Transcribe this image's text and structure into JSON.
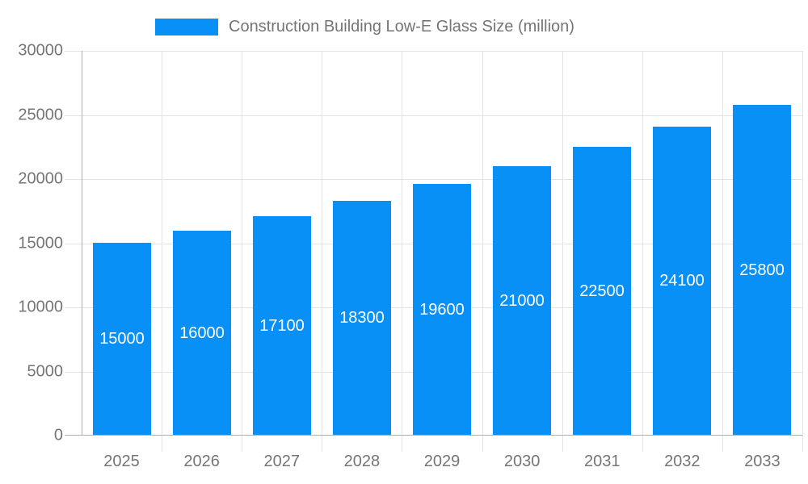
{
  "chart_data": {
    "type": "bar",
    "title": "Construction Building Low-E Glass Size (million)",
    "categories": [
      "2025",
      "2026",
      "2027",
      "2028",
      "2029",
      "2030",
      "2031",
      "2032",
      "2033"
    ],
    "values": [
      15000,
      16000,
      17100,
      18300,
      19600,
      21000,
      22500,
      24100,
      25800
    ],
    "xlabel": "",
    "ylabel": "",
    "ylim": [
      0,
      30000
    ],
    "yticks": [
      0,
      5000,
      10000,
      15000,
      20000,
      25000,
      30000
    ],
    "grid": true,
    "legend_position": "top",
    "value_labels": "inside-center",
    "colors": {
      "bar": "#0990f6",
      "grid": "#e3e3e3",
      "axis": "#b0b0b0",
      "text": "#757575",
      "value_label": "#ffffff",
      "background": "#ffffff"
    }
  }
}
